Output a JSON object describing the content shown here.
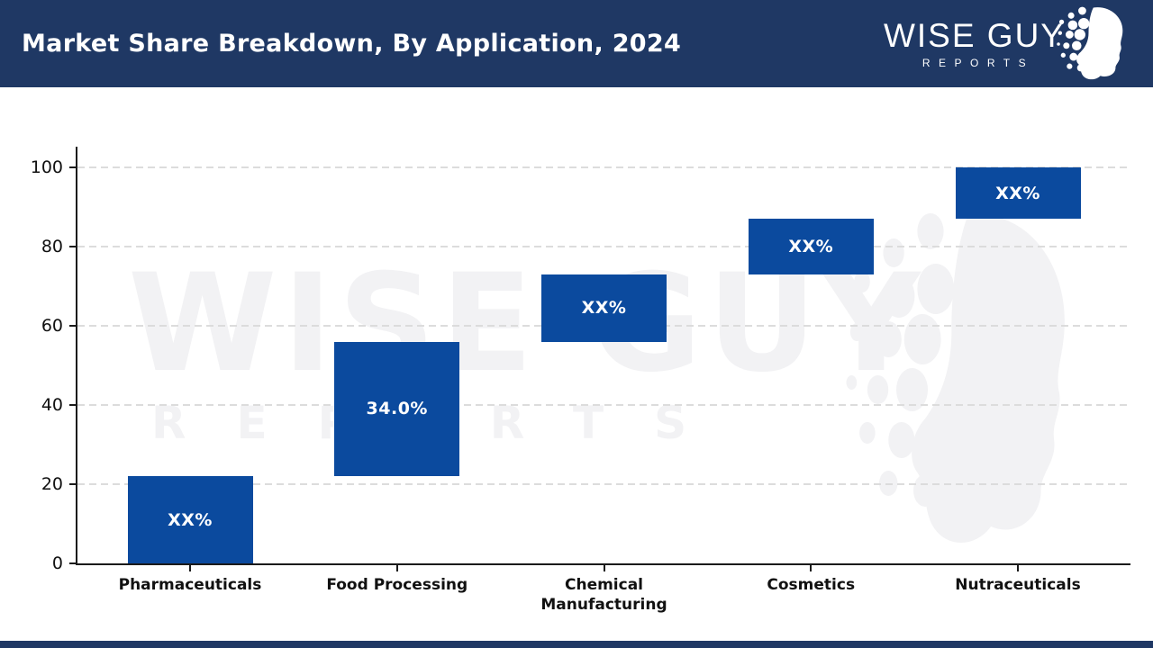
{
  "header": {
    "title": "Market Share Breakdown, By Application, 2024",
    "logo": {
      "line1": "WISE GUY",
      "line2": "REPORTS"
    }
  },
  "watermark": {
    "line1": "WISE GUY",
    "line2": "REPORTS"
  },
  "colors": {
    "header_bg": "#1f3864",
    "bar": "#0b4a9e",
    "bar_label": "#ffffff",
    "watermark": "#f2f2f4",
    "grid": "#dcdcdc",
    "axis": "#1a1a1a"
  },
  "chart_data": {
    "type": "bar",
    "subtype": "waterfall",
    "title": "Market Share Breakdown, By Application, 2024",
    "xlabel": "",
    "ylabel": "",
    "categories": [
      "Pharmaceuticals",
      "Food Processing",
      "Chemical\nManufacturing",
      "Cosmetics",
      "Nutraceuticals"
    ],
    "segments": [
      {
        "category": "Pharmaceuticals",
        "label": "XX%",
        "start": 0,
        "end": 22
      },
      {
        "category": "Food Processing",
        "label": "34.0%",
        "start": 22,
        "end": 56
      },
      {
        "category": "Chemical Manufacturing",
        "label": "XX%",
        "start": 56,
        "end": 73
      },
      {
        "category": "Cosmetics",
        "label": "XX%",
        "start": 73,
        "end": 87
      },
      {
        "category": "Nutraceuticals",
        "label": "XX%",
        "start": 87,
        "end": 100
      }
    ],
    "yticks": [
      0,
      20,
      40,
      60,
      80,
      100
    ],
    "ylim": [
      0,
      105
    ],
    "grid": "horizontal-dashed",
    "legend": "none"
  }
}
